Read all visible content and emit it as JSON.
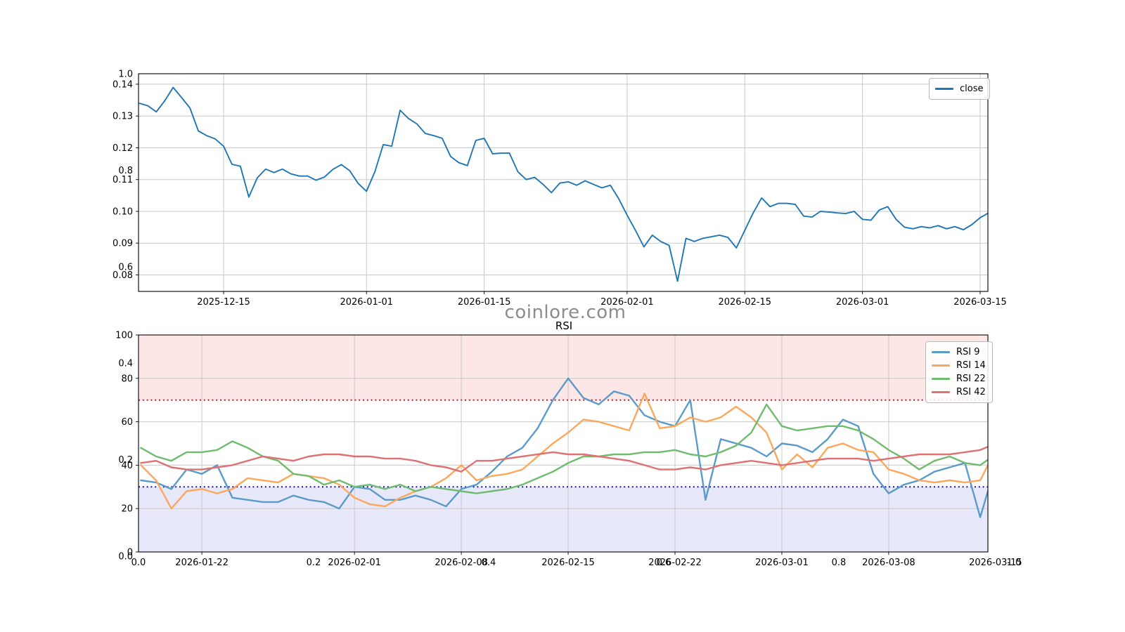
{
  "watermark": "coinlore.com",
  "overlay_axis": {
    "y_labels": [
      "1.0",
      "0.8",
      "0.6",
      "0.4",
      "0.2",
      "0.0"
    ],
    "x_labels": [
      "0.0",
      "0.2",
      "0.4",
      "0.6",
      "0.8",
      "1.0"
    ]
  },
  "chart_data": [
    {
      "type": "line",
      "title": "",
      "x_start": "2025-12-05",
      "x_interval": "1 day",
      "legend_position": "upper right",
      "grid": true,
      "ylim": [
        0.0748,
        0.1433
      ],
      "yticks": [
        0.08,
        0.09,
        0.1,
        0.11,
        0.12,
        0.13,
        0.14
      ],
      "xticks": [
        {
          "label": "2025-12-15",
          "day": 10
        },
        {
          "label": "2026-01-01",
          "day": 27
        },
        {
          "label": "2026-01-15",
          "day": 41
        },
        {
          "label": "2026-02-01",
          "day": 58
        },
        {
          "label": "2026-02-15",
          "day": 72
        },
        {
          "label": "2026-03-01",
          "day": 86
        },
        {
          "label": "2026-03-15",
          "day": 100
        }
      ],
      "series": [
        {
          "name": "close",
          "color": "#1f77b4",
          "values": [
            0.134,
            0.1332,
            0.1313,
            0.1348,
            0.139,
            0.1358,
            0.1325,
            0.1253,
            0.1238,
            0.1228,
            0.1205,
            0.1148,
            0.1142,
            0.1045,
            0.1105,
            0.1133,
            0.1122,
            0.1133,
            0.1118,
            0.1111,
            0.1111,
            0.1098,
            0.1108,
            0.1132,
            0.1147,
            0.1128,
            0.1088,
            0.1063,
            0.1125,
            0.121,
            0.1205,
            0.1318,
            0.1292,
            0.1275,
            0.1245,
            0.1238,
            0.123,
            0.1173,
            0.1153,
            0.1144,
            0.1223,
            0.123,
            0.1181,
            0.1183,
            0.1183,
            0.1125,
            0.11,
            0.1107,
            0.1085,
            0.1059,
            0.1089,
            0.1093,
            0.1082,
            0.1096,
            0.1085,
            0.1074,
            0.1082,
            0.104,
            0.0988,
            0.094,
            0.0888,
            0.0925,
            0.0905,
            0.0893,
            0.078,
            0.0915,
            0.0905,
            0.0915,
            0.092,
            0.0925,
            0.0918,
            0.0885,
            0.094,
            0.0995,
            0.1042,
            0.1015,
            0.1025,
            0.1025,
            0.1022,
            0.0985,
            0.0982,
            0.1,
            0.0998,
            0.0995,
            0.0993,
            0.1,
            0.0975,
            0.0972,
            0.1004,
            0.1015,
            0.0975,
            0.095,
            0.0945,
            0.0952,
            0.0948,
            0.0955,
            0.0945,
            0.0952,
            0.0942,
            0.0958,
            0.098,
            0.0995
          ]
        }
      ]
    },
    {
      "type": "line",
      "title": "RSI",
      "x_start": "2026-01-18",
      "x_interval": "1 day",
      "legend_position": "upper right",
      "grid": true,
      "ylim": [
        0,
        100
      ],
      "yticks": [
        0,
        20,
        40,
        60,
        80,
        100
      ],
      "xticks": [
        {
          "label": "2026-01-22",
          "day": 4
        },
        {
          "label": "2026-02-01",
          "day": 14
        },
        {
          "label": "2026-02-08",
          "day": 21
        },
        {
          "label": "2026-02-15",
          "day": 28
        },
        {
          "label": "2026-02-22",
          "day": 35
        },
        {
          "label": "2026-03-01",
          "day": 42
        },
        {
          "label": "2026-03-08",
          "day": 49
        },
        {
          "label": "2026-03-15",
          "day": 56
        }
      ],
      "bands": [
        {
          "name": "overbought-band",
          "range": [
            70,
            100
          ],
          "color": "rgba(228,60,60,0.13)"
        },
        {
          "name": "oversold-band",
          "range": [
            0,
            30
          ],
          "color": "rgba(100,100,228,0.15)"
        }
      ],
      "hlines": [
        {
          "name": "overbought-line",
          "y": 70,
          "color": "#e10012",
          "style": "dotted"
        },
        {
          "name": "oversold-line",
          "y": 30,
          "color": "#0000cc",
          "style": "dotted"
        }
      ],
      "series": [
        {
          "name": "RSI 9",
          "color": "#5b9bc9",
          "values": [
            33,
            32,
            29,
            38,
            36,
            40,
            25,
            24,
            23,
            23,
            26,
            24,
            23,
            20,
            30,
            29,
            24,
            24,
            26,
            24,
            21,
            29,
            31,
            37,
            44,
            48,
            57,
            70,
            80,
            71,
            68,
            74,
            72,
            63,
            60,
            58,
            70,
            24,
            52,
            50,
            48,
            44,
            50,
            49,
            46,
            52,
            61,
            58,
            36,
            27,
            31,
            33,
            37,
            39,
            41,
            16,
            40
          ]
        },
        {
          "name": "RSI 14",
          "color": "#fda75c",
          "values": [
            40,
            33,
            20,
            28,
            29,
            27,
            29,
            34,
            33,
            32,
            36,
            35,
            34,
            31,
            25,
            22,
            21,
            25,
            28,
            30,
            34,
            40,
            33,
            35,
            36,
            38,
            44,
            50,
            55,
            61,
            60,
            58,
            56,
            73,
            57,
            58,
            62,
            60,
            62,
            67,
            62,
            55,
            38,
            45,
            39,
            48,
            50,
            47,
            46,
            38,
            36,
            33,
            32,
            33,
            32,
            33,
            47
          ]
        },
        {
          "name": "RSI 22",
          "color": "#6fbc6f",
          "values": [
            48,
            44,
            42,
            46,
            46,
            47,
            51,
            48,
            44,
            42,
            36,
            35,
            31,
            33,
            30,
            31,
            29,
            31,
            28,
            30,
            29,
            28,
            27,
            28,
            29,
            31,
            34,
            37,
            41,
            44,
            44,
            45,
            45,
            46,
            46,
            47,
            45,
            44,
            46,
            49,
            55,
            68,
            58,
            56,
            57,
            58,
            58,
            56,
            52,
            47,
            43,
            38,
            42,
            44,
            41,
            40,
            45
          ]
        },
        {
          "name": "RSI 42",
          "color": "#e07173",
          "values": [
            41,
            42,
            39,
            38,
            38,
            39,
            40,
            42,
            44,
            43,
            42,
            44,
            45,
            45,
            44,
            44,
            43,
            43,
            42,
            40,
            39,
            37,
            42,
            42,
            43,
            44,
            45,
            46,
            45,
            45,
            44,
            43,
            42,
            40,
            38,
            38,
            39,
            38,
            40,
            41,
            42,
            41,
            40,
            41,
            42,
            43,
            43,
            43,
            42,
            43,
            44,
            45,
            45,
            45,
            46,
            47,
            50
          ]
        }
      ]
    }
  ]
}
